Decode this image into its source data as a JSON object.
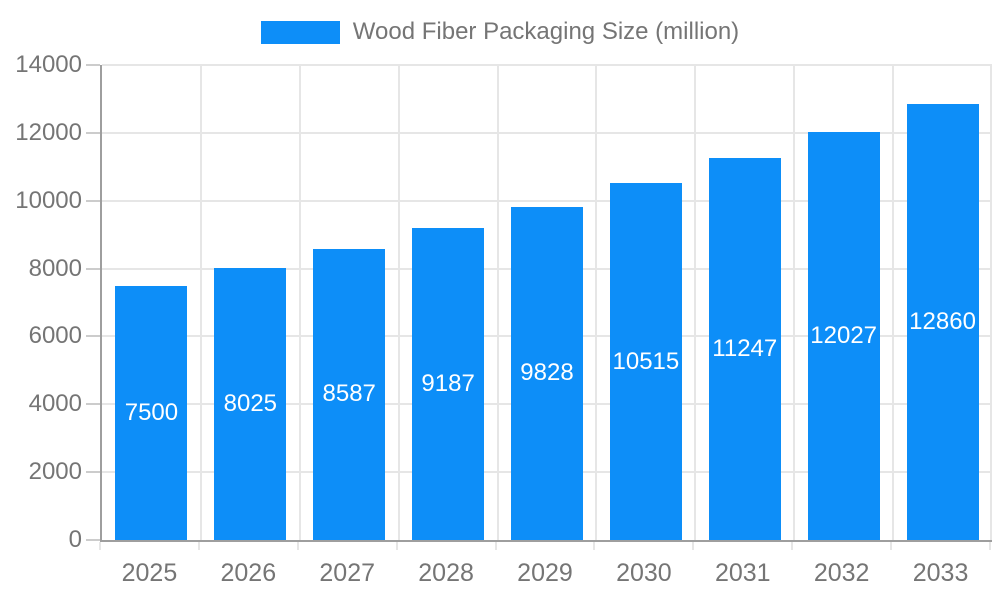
{
  "legend": {
    "label": "Wood Fiber Packaging Size (million)"
  },
  "chart_data": {
    "type": "bar",
    "title": "Wood Fiber Packaging Size (million)",
    "categories": [
      "2025",
      "2026",
      "2027",
      "2028",
      "2029",
      "2030",
      "2031",
      "2032",
      "2033"
    ],
    "values": [
      7500,
      8025,
      8587,
      9187,
      9828,
      10515,
      11247,
      12027,
      12860
    ],
    "series": [
      {
        "name": "Wood Fiber Packaging Size (million)",
        "values": [
          7500,
          8025,
          8587,
          9187,
          9828,
          10515,
          11247,
          12027,
          12860
        ]
      }
    ],
    "xlabel": "",
    "ylabel": "",
    "ylim": [
      0,
      14000
    ],
    "yticks": [
      0,
      2000,
      4000,
      6000,
      8000,
      10000,
      12000,
      14000
    ],
    "grid": true,
    "legend_position": "top",
    "bar_labels_inside": true,
    "colors": {
      "bar": "#0d8ef8",
      "bar_label": "#ffffff",
      "axis_line": "#9e9e9e",
      "grid_line": "#e6e6e6",
      "axis_text": "#757575"
    }
  }
}
